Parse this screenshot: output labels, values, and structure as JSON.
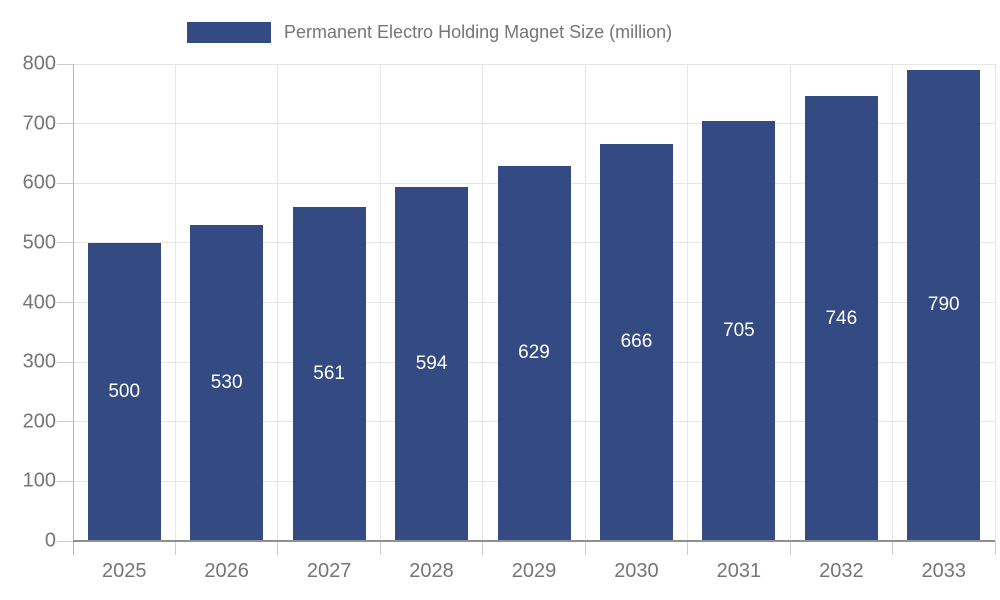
{
  "legend": {
    "label": "Permanent Electro Holding Magnet Size (million)"
  },
  "chart_data": {
    "type": "bar",
    "title": "Permanent Electro Holding Magnet Size (million)",
    "categories": [
      "2025",
      "2026",
      "2027",
      "2028",
      "2029",
      "2030",
      "2031",
      "2032",
      "2033"
    ],
    "values": [
      500,
      530,
      561,
      594,
      629,
      666,
      705,
      746,
      790
    ],
    "xlabel": "",
    "ylabel": "",
    "ylim": [
      0,
      800
    ],
    "ytick_step": 100,
    "ytick_labels": [
      "0",
      "100",
      "200",
      "300",
      "400",
      "500",
      "600",
      "700",
      "800"
    ],
    "grid": true,
    "legend_position": "top",
    "bar_color": "#344a82",
    "value_label_color": "#ffffff",
    "axis_text_color": "#757575",
    "gridline_color": "#e6e6e6",
    "axis_line_color": "#b3b3b3",
    "baseline_color": "#8f8f8f"
  }
}
